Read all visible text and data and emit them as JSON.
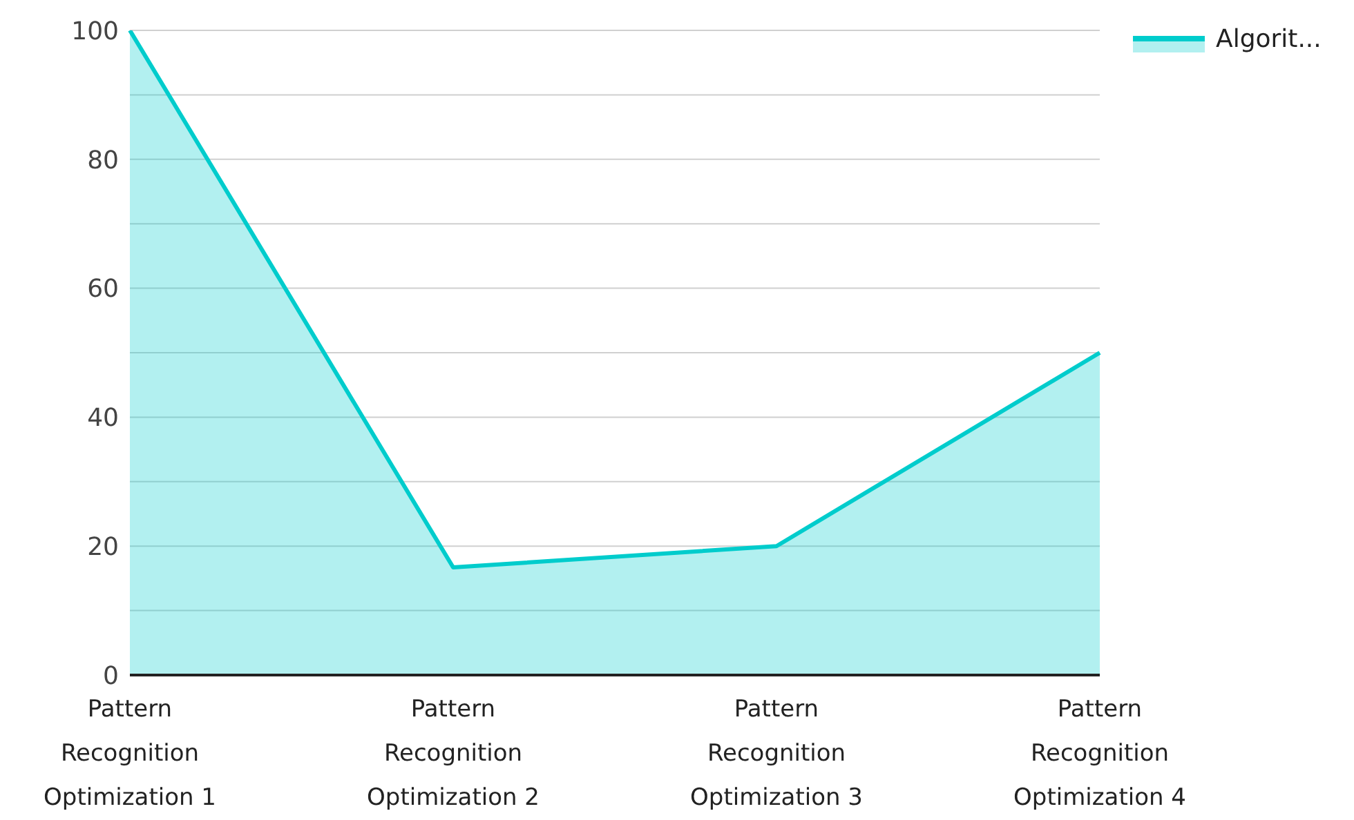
{
  "chart_data": {
    "type": "area",
    "categories": [
      "Pattern Recognition Optimization 1",
      "Pattern Recognition Optimization 2",
      "Pattern Recognition Optimization 3",
      "Pattern Recognition Optimization 4"
    ],
    "series": [
      {
        "name": "Algorit...",
        "color": "#00cccc",
        "values": [
          100,
          16.7,
          20,
          50
        ]
      }
    ],
    "ylim": [
      0,
      100
    ],
    "yticks": [
      0,
      {
        "value": 10,
        "label": null
      },
      20,
      {
        "value": 30,
        "label": null
      },
      40,
      {
        "value": 50,
        "label": null
      },
      60,
      {
        "value": 70,
        "label": null
      },
      80,
      {
        "value": 90,
        "label": null
      },
      100
    ],
    "grid": "y",
    "legend": "top right"
  }
}
